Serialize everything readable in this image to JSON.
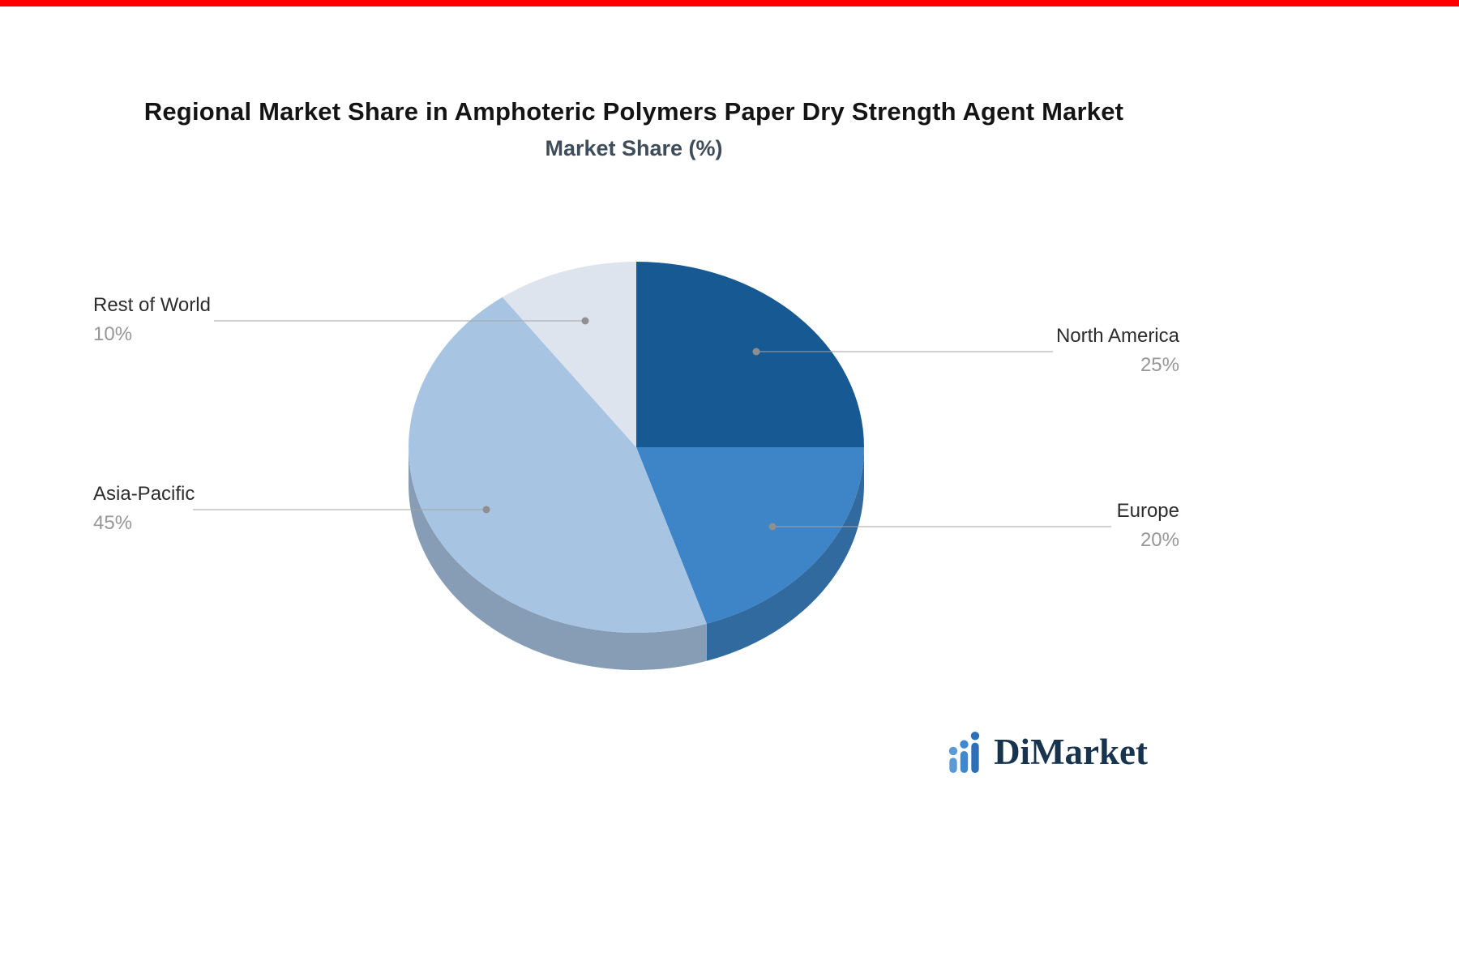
{
  "page": {
    "background": "#ffffff",
    "top_bar_color": "#fe0000"
  },
  "header": {
    "title": "Regional Market Share in Amphoteric Polymers Paper Dry Strength Agent Market",
    "subtitle": "Market Share (%)"
  },
  "chart_data": {
    "type": "pie",
    "title": "Regional Market Share in Amphoteric Polymers Paper Dry Strength Agent Market",
    "subtitle": "Market Share (%)",
    "unit": "%",
    "style": "3d",
    "start_angle_deg": -90,
    "direction": "clockwise",
    "legend_position": "none",
    "categories": [
      "North America",
      "Europe",
      "Asia-Pacific",
      "Rest of World"
    ],
    "values": [
      25,
      20,
      45,
      10
    ],
    "value_labels": [
      "25%",
      "20%",
      "45%",
      "10%"
    ],
    "slice_colors": [
      "#175a93",
      "#3d85c6",
      "#a7c4e2",
      "#dde4ee"
    ],
    "label_name_color": "#2d2d2d",
    "label_value_color": "#979797",
    "leader_line_color": "#a3a3a3",
    "leader_dot_color": "#8f8f8f"
  },
  "footer": {
    "brand": "DiMarket",
    "brand_color": "#17334e",
    "icon": "bar-chart-icon",
    "icon_colors": [
      "#5b9bd5",
      "#3f87cf",
      "#2d6fb8"
    ]
  }
}
